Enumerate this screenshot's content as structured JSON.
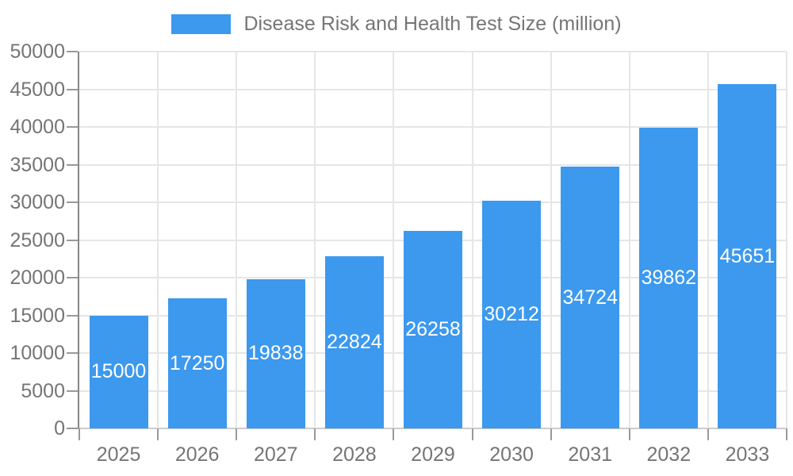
{
  "chart_data": {
    "type": "bar",
    "title": "Disease Risk and Health Test Size (million)",
    "categories": [
      "2025",
      "2026",
      "2027",
      "2028",
      "2029",
      "2030",
      "2031",
      "2032",
      "2033"
    ],
    "series": [
      {
        "name": "Disease Risk and Health Test Size (million)",
        "values": [
          15000,
          17250,
          19838,
          22824,
          26258,
          30212,
          34724,
          39862,
          45651
        ]
      }
    ],
    "xlabel": "",
    "ylabel": "",
    "ylim": [
      0,
      50000
    ],
    "y_ticks": [
      0,
      5000,
      10000,
      15000,
      20000,
      25000,
      30000,
      35000,
      40000,
      45000,
      50000
    ],
    "grid": true,
    "legend_position": "top-center",
    "bar_color": "#3C99EE",
    "bar_value_label_color": "#FFFFFF",
    "axis_text_color": "#757575",
    "gridline_color": "#E6E6E6",
    "y_axis_line_color": "#888888",
    "x_axis_line_color": "#CCCCCC",
    "tick_color": "#999999"
  },
  "legend": {
    "label": "Disease Risk and Health Test Size (million)"
  }
}
